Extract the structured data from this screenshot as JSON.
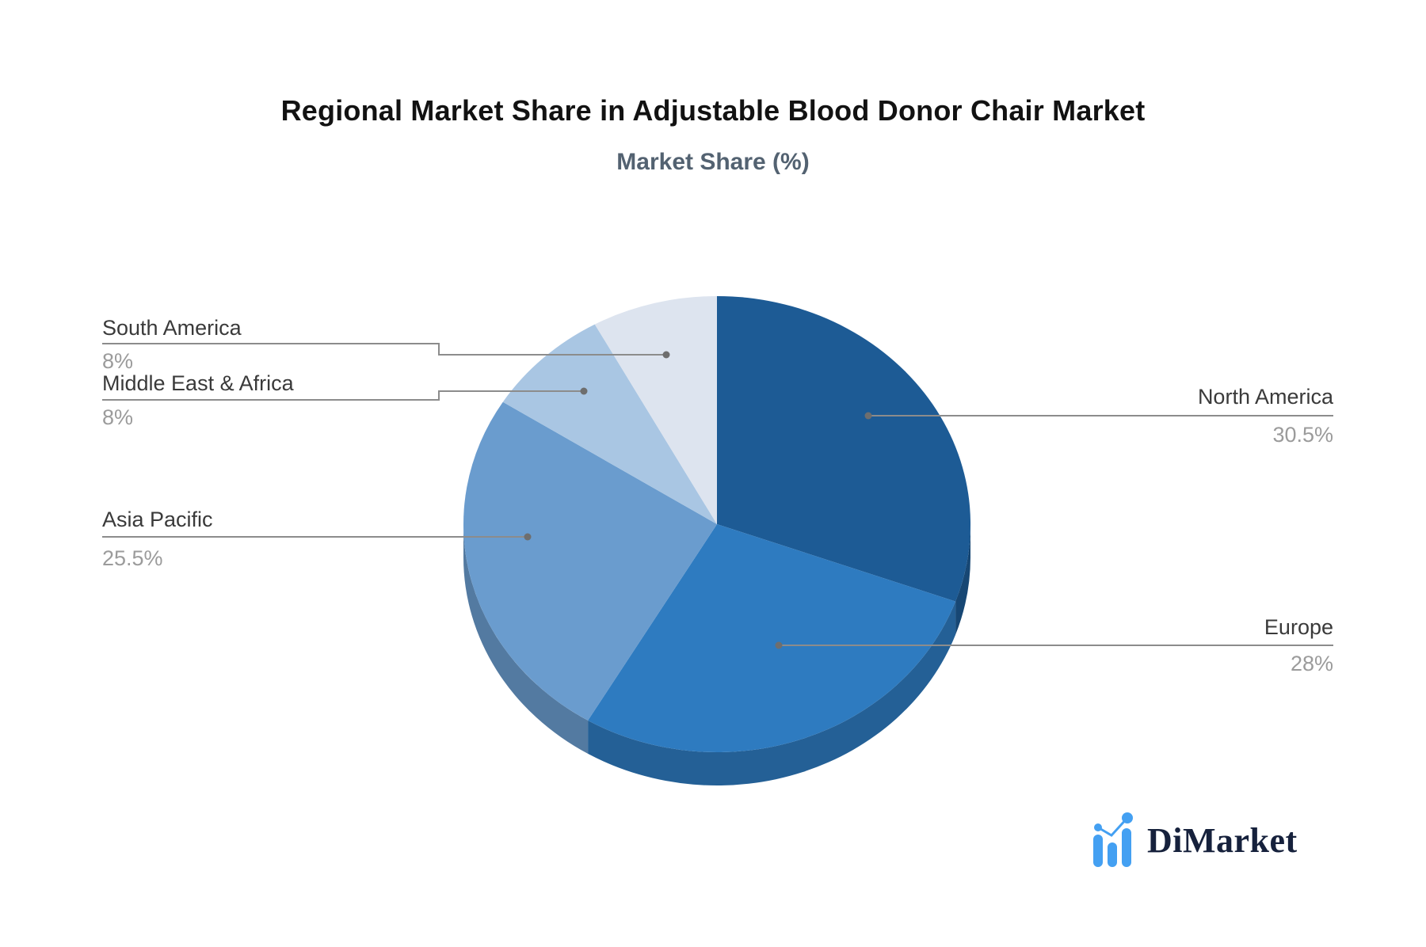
{
  "page": {
    "background": "#ffffff"
  },
  "header": {
    "title_color": "#121212",
    "subtitle_color": "#536271"
  },
  "chart_data": {
    "type": "pie",
    "style": "3d",
    "title": "Regional Market Share in Adjustable Blood Donor Chair Market",
    "subtitle": "Market Share (%)",
    "categories": [
      "North America",
      "Europe",
      "Asia Pacific",
      "Middle East & Africa",
      "South America"
    ],
    "values": [
      30.5,
      28,
      25.5,
      8,
      8
    ],
    "display_values": [
      "30.5%",
      "28%",
      "25.5%",
      "8%",
      "8%"
    ],
    "colors": [
      "#1d5b95",
      "#2e7bc0",
      "#6a9cce",
      "#a9c6e3",
      "#dde4ef"
    ],
    "start_angle_deg": 0,
    "direction": "clockwise",
    "total": 100,
    "legend_position": "callout-labels",
    "leader_line_color": "#8c8c8c",
    "leader_dot_color": "#6e6e6e",
    "label_color": "#3a3a3a",
    "value_color": "#9b9b9b"
  },
  "logo": {
    "text": "DiMarket",
    "text_color": "#16213c",
    "icon": "bar-chart-with-trend-dots-icon",
    "icon_color": "#44a0f2"
  }
}
